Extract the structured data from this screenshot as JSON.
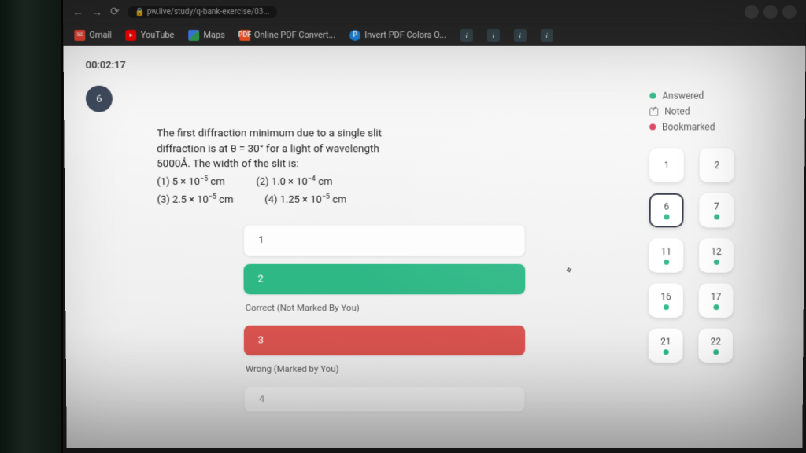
{
  "browser": {
    "url": "pw.live/study/q-bank-exercise/03...",
    "bookmarks": [
      {
        "label": "Gmail",
        "iconClass": "gmail-i",
        "glyph": "✉"
      },
      {
        "label": "YouTube",
        "iconClass": "yt-i",
        "glyph": "▸"
      },
      {
        "label": "Maps",
        "iconClass": "maps-i",
        "glyph": ""
      },
      {
        "label": "Online PDF Convert...",
        "iconClass": "pdf-i",
        "glyph": "PDF"
      },
      {
        "label": "Invert PDF Colors O...",
        "iconClass": "p-i",
        "glyph": "P"
      }
    ]
  },
  "timer": "00:02:17",
  "questionNumber": "6",
  "question": {
    "line1": "The first diffraction minimum due to a single slit",
    "line2": "diffraction is at θ = 30° for a light of wavelength",
    "line3": "5000Å. The width of the slit is:",
    "opt1a": "(1)   5 × 10",
    "opt1a_sup": "−5",
    "opt1a_tail": " cm",
    "opt1b": "(2)   1.0 × 10",
    "opt1b_sup": "−4",
    "opt1b_tail": " cm",
    "opt2a": "(3)   2.5 × 10",
    "opt2a_sup": "−5",
    "opt2a_tail": " cm",
    "opt2b": "(4)   1.25 × 10",
    "opt2b_sup": "−5",
    "opt2b_tail": " cm"
  },
  "answers": {
    "a1": "1",
    "a2": "2",
    "note2": "Correct (Not Marked By You)",
    "a3": "3",
    "note3": "Wrong (Marked by You)",
    "a4": "4"
  },
  "legend": {
    "answered": "Answered",
    "noted": "Noted",
    "bookmarked": "Bookmarked"
  },
  "palette": [
    {
      "n": "1",
      "dot": false
    },
    {
      "n": "2",
      "dot": false
    },
    {
      "n": "6",
      "dot": true,
      "current": true
    },
    {
      "n": "7",
      "dot": true
    },
    {
      "n": "11",
      "dot": true
    },
    {
      "n": "12",
      "dot": true
    },
    {
      "n": "16",
      "dot": true
    },
    {
      "n": "17",
      "dot": true
    },
    {
      "n": "21",
      "dot": true
    },
    {
      "n": "22",
      "dot": true
    }
  ],
  "colors": {
    "green": "#2eb886",
    "red": "#d9534f",
    "qnum_bg": "#3e4a5c"
  }
}
